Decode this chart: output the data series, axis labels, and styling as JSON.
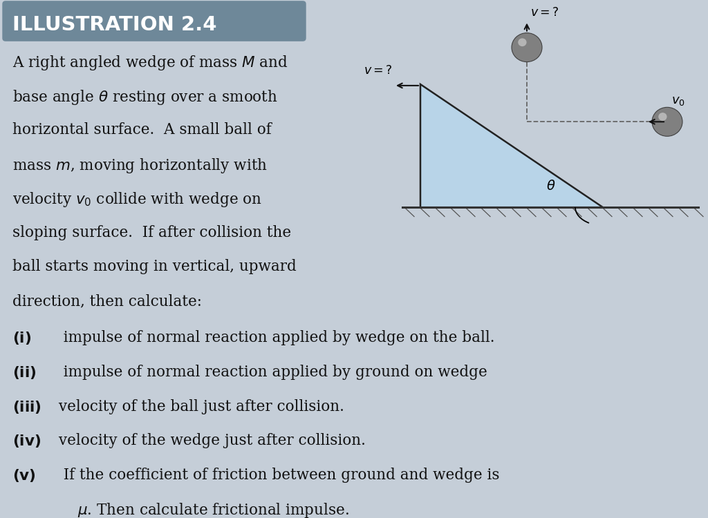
{
  "bg_color": "#c5ced8",
  "title_bg_color": "#6e8899",
  "title_text": "ILLUSTRATION 2.4",
  "body_lines": [
    "A right angled wedge of mass $M$ and",
    "base angle $\\theta$ resting over a smooth $v=?\\leftarrow$",
    "horizontal surface.  A small ball of",
    "mass $m$, moving horizontally with",
    "velocity $v_0$ collide with wedge on",
    "sloping surface.  If after collision the",
    "ball starts moving in vertical, upward",
    "direction, then calculate:"
  ],
  "item_labels": [
    "(i)",
    "(ii)",
    "(iii)",
    "(iv)",
    "(v)"
  ],
  "item_texts": [
    "  impulse of normal reaction applied by wedge on the ball.",
    "  impulse of normal reaction applied by ground on wedge",
    " velocity of the ball just after collision.",
    " velocity of the wedge just after collision.",
    "  If the coefficient of friction between ground and wedge is",
    "     $\\mu$. Then calculate frictional impulse."
  ],
  "wedge_fill": "#b8d4e8",
  "wedge_edge": "#222222",
  "ground_line": "#333333",
  "ball_dark": "#787878",
  "ball_light": "#aaaaaa",
  "dash_color": "#666666",
  "arrow_color": "#111111",
  "text_color": "#111111",
  "body_fontsize": 15.5,
  "item_fontsize": 15.5,
  "title_fontsize": 21
}
